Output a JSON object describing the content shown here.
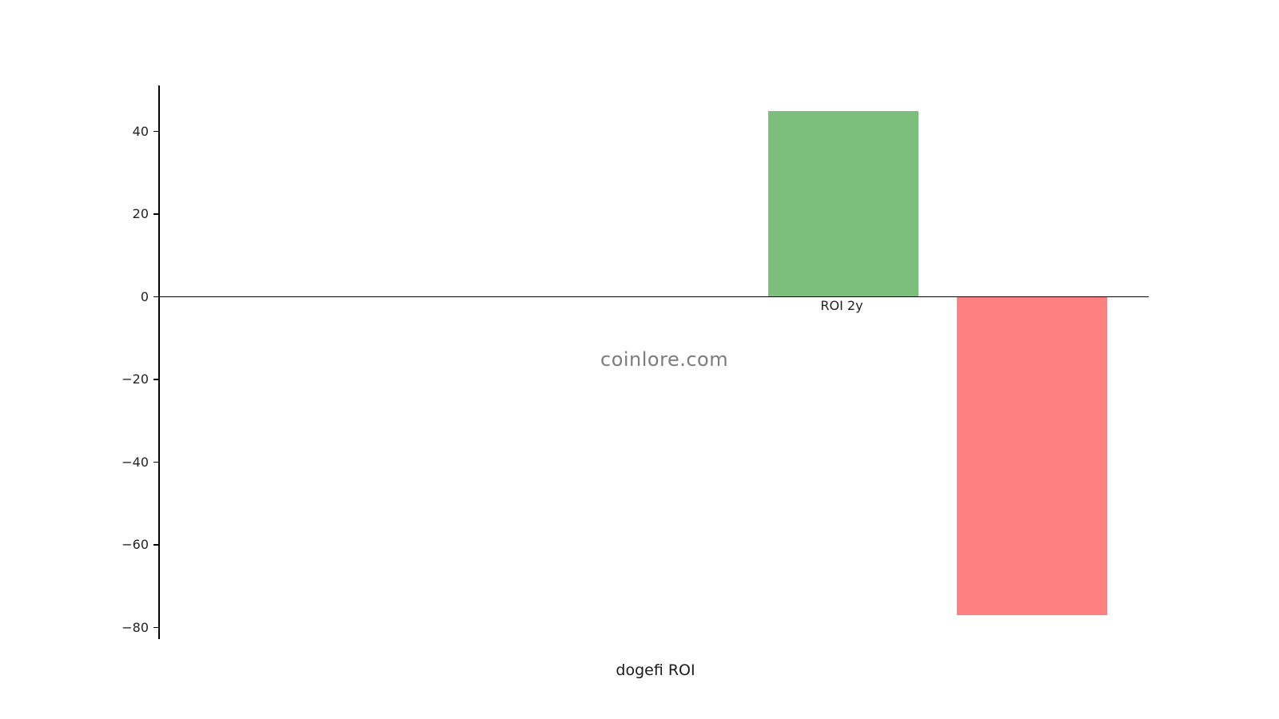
{
  "watermark": {
    "text": "coinlore.com",
    "color": "#7c7c7c"
  },
  "chart_data": {
    "type": "bar",
    "categories": [
      "ROI 2y",
      ""
    ],
    "values": [
      45,
      -77
    ],
    "bar_colors": [
      "#7cbe7c",
      "#fd7f7f"
    ],
    "title": "",
    "xlabel": "dogefi ROI",
    "ylabel": "",
    "yticks": [
      40,
      20,
      0,
      -20,
      -40,
      -60,
      -80
    ],
    "ylim": [
      -83,
      51
    ],
    "grid": false,
    "legend": null,
    "positive_color": "#7cbe7c",
    "negative_color": "#fd7f7f",
    "axis_color": "#000000"
  }
}
